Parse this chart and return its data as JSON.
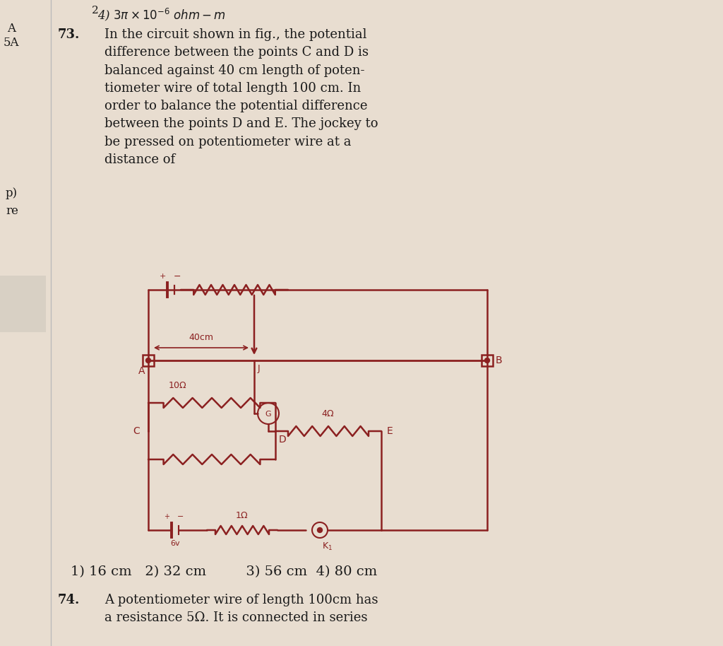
{
  "page_bg": "#e8ddd0",
  "text_color": "#1a1a1a",
  "circuit_color": "#8B2020",
  "fig_width": 10.24,
  "fig_height": 9.14,
  "q73_body": "In the circuit shown in fig., the potential\ndifference between the points C and D is\nbalanced against 40 cm length of poten-\ntiometer wire of total length 100 cm. In\norder to balance the potential difference\nbetween the points D and E. The jockey to\nbe pressed on potentiometer wire at a\ndistance of",
  "options_line": "1) 16 cm   2) 32 cm         3) 56 cm  4) 80 cm",
  "q74_body": "A potentiometer wire of length 100cm has\na resistance 5Ω. It is connected in series"
}
